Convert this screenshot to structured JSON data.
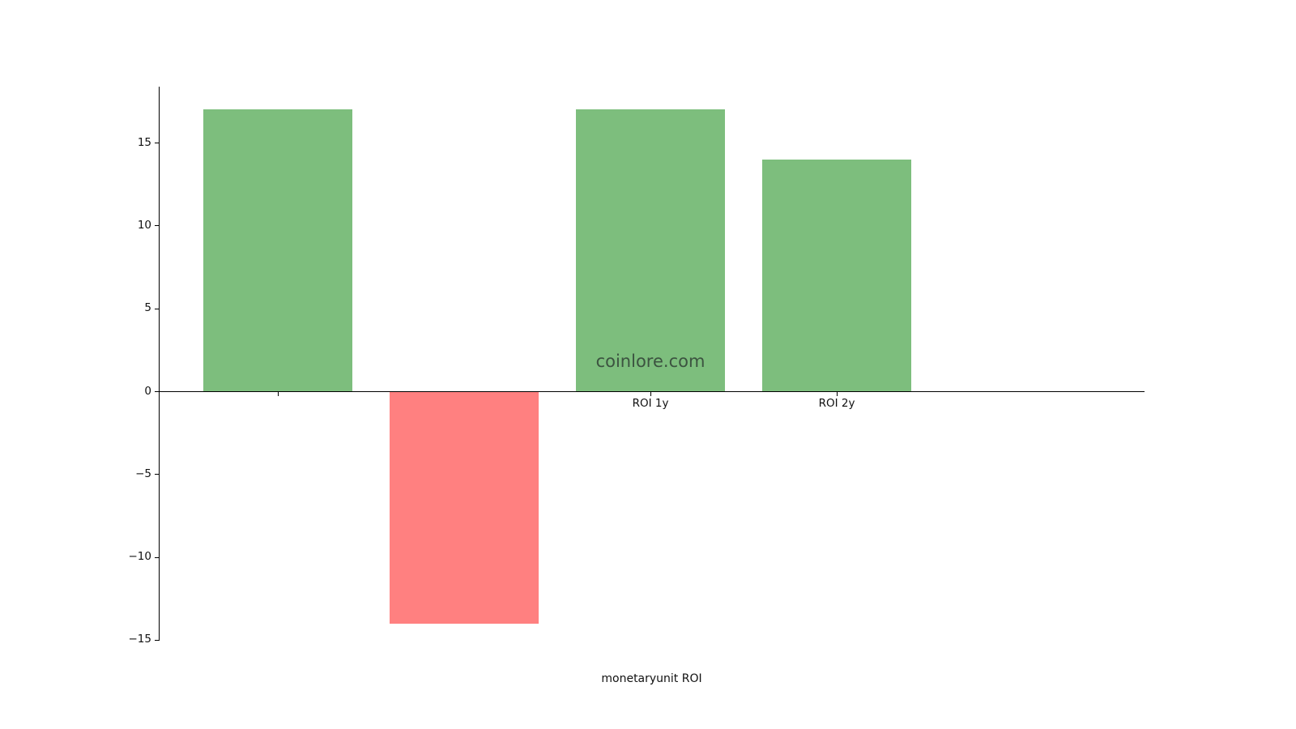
{
  "watermark": "coinlore.com",
  "chart_data": {
    "type": "bar",
    "title": "",
    "xlabel": "monetaryunit ROI",
    "ylabel": "",
    "categories": [
      "",
      "",
      "ROI 1y",
      "ROI 2y"
    ],
    "values": [
      17,
      -14,
      17,
      14
    ],
    "bar_colors": [
      "#7dbe7d",
      "#ff8080",
      "#7dbe7d",
      "#7dbe7d"
    ],
    "positive_color": "#7dbe7d",
    "negative_color": "#ff8080",
    "y_tick_values": [
      15,
      10,
      5,
      0,
      -5,
      -10,
      -15
    ],
    "y_tick_labels": [
      "15",
      "10",
      "5",
      "0",
      "−5",
      "−10",
      "−15"
    ],
    "ylim": [
      -15.05,
      18.4
    ],
    "grid": false,
    "legend_position": "none",
    "axis_color": "#000000",
    "text_color": "#111111",
    "watermark_color": "#3c5340"
  }
}
